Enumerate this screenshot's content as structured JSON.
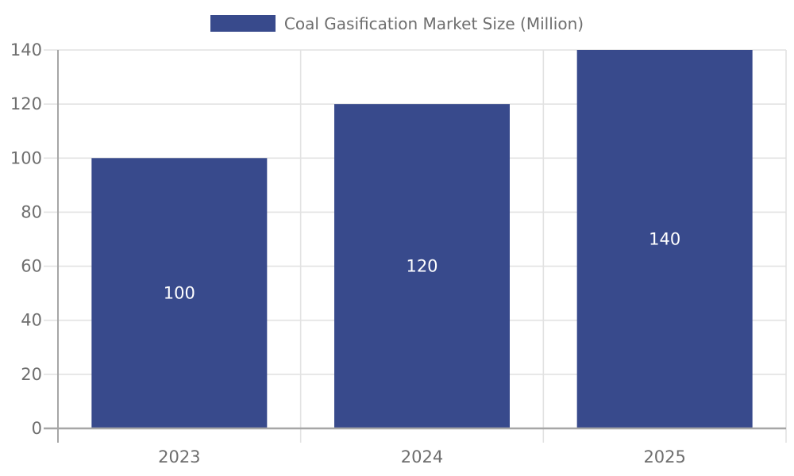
{
  "chart_data": {
    "type": "bar",
    "title": "Coal Gasification Market Size (Million)",
    "categories": [
      "2023",
      "2024",
      "2025"
    ],
    "values": [
      100,
      120,
      140
    ],
    "bar_labels": [
      "100",
      "120",
      "140"
    ],
    "xlabel": "",
    "ylabel": "",
    "ylim": [
      0,
      140
    ],
    "yticks": [
      0,
      20,
      40,
      60,
      80,
      100,
      120,
      140
    ],
    "grid": true,
    "legend_position": "top-center",
    "colors": {
      "bar": "#384A8C",
      "grid": "#E2E2E2",
      "axis": "#A6A6A6",
      "text": "#6E6E6E",
      "bar_label": "#FFFFFF",
      "background": "#FFFFFF"
    }
  }
}
